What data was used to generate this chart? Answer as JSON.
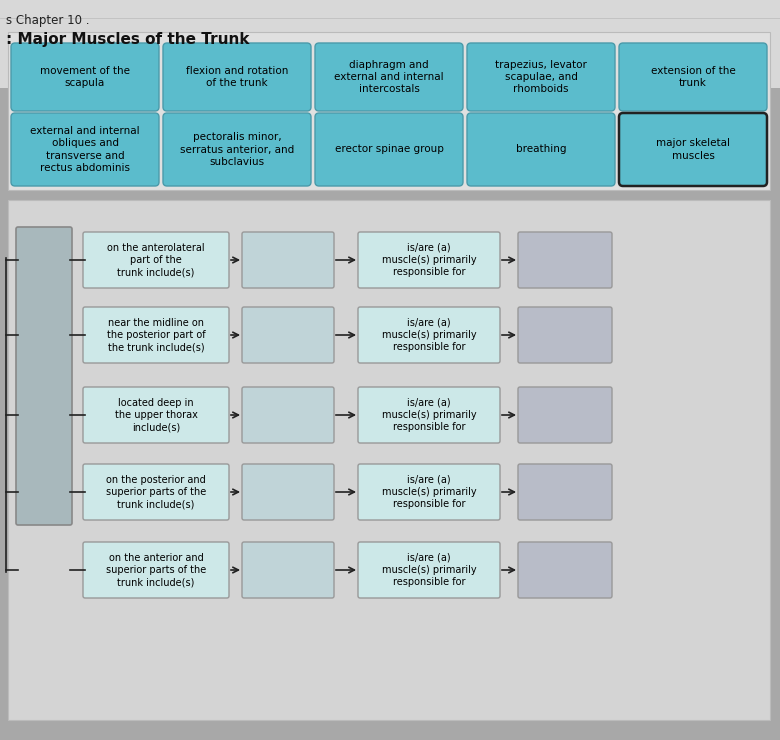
{
  "title_line1": "s Chapter 10 .",
  "title_line2": ": Major Muscles of the Trunk",
  "fig_bg": "#a8a8a8",
  "header_bg": "#d8d8d8",
  "top_section_bg": "#e0e0e0",
  "flow_section_bg": "#d4d4d4",
  "top_row1": [
    "movement of the\nscapula",
    "flexion and rotation\nof the trunk",
    "diaphragm and\nexternal and internal\nintercostals",
    "trapezius, levator\nscapulae, and\nrhomboids",
    "extension of the\ntrunk"
  ],
  "top_row2": [
    "external and internal\nobliques and\ntransverse and\nrectus abdominis",
    "pectoralis minor,\nserratus anterior, and\nsubclavius",
    "erector spinae group",
    "breathing",
    "major skeletal\nmuscles"
  ],
  "top_box_color": "#5bbccc",
  "top_box_edge": "#4a9aaa",
  "top_box_last_edge": "#222222",
  "flow_left_labels": [
    "on the anterolateral\npart of the\ntrunk include(s)",
    "near the midline on\nthe posterior part of\nthe trunk include(s)",
    "located deep in\nthe upper thorax\ninclude(s)",
    "on the posterior and\nsuperior parts of the\ntrunk include(s)",
    "on the anterior and\nsuperior parts of the\ntrunk include(s)"
  ],
  "flow_mid_labels": [
    "is/are (a)\nmuscle(s) primarily\nresponsible for",
    "is/are (a)\nmuscle(s) primarily\nresponsible for",
    "is/are (a)\nmuscle(s) primarily\nresponsible for",
    "is/are (a)\nmuscle(s) primarily\nresponsible for",
    "is/are (a)\nmuscle(s) primarily\nresponsible for"
  ],
  "flow_label_box_color": "#cde8e8",
  "flow_label_box_edge": "#999999",
  "flow_blank_box_color": "#c0d4d8",
  "flow_blank_box_edge": "#999999",
  "flow_text_box_color": "#cce8e8",
  "flow_text_box_edge": "#999999",
  "flow_answer_box_color": "#b8bcc8",
  "flow_answer_box_edge": "#999999",
  "left_big_box_color": "#a8b8bc",
  "left_big_box_edge": "#888888",
  "arrow_color": "#222222"
}
